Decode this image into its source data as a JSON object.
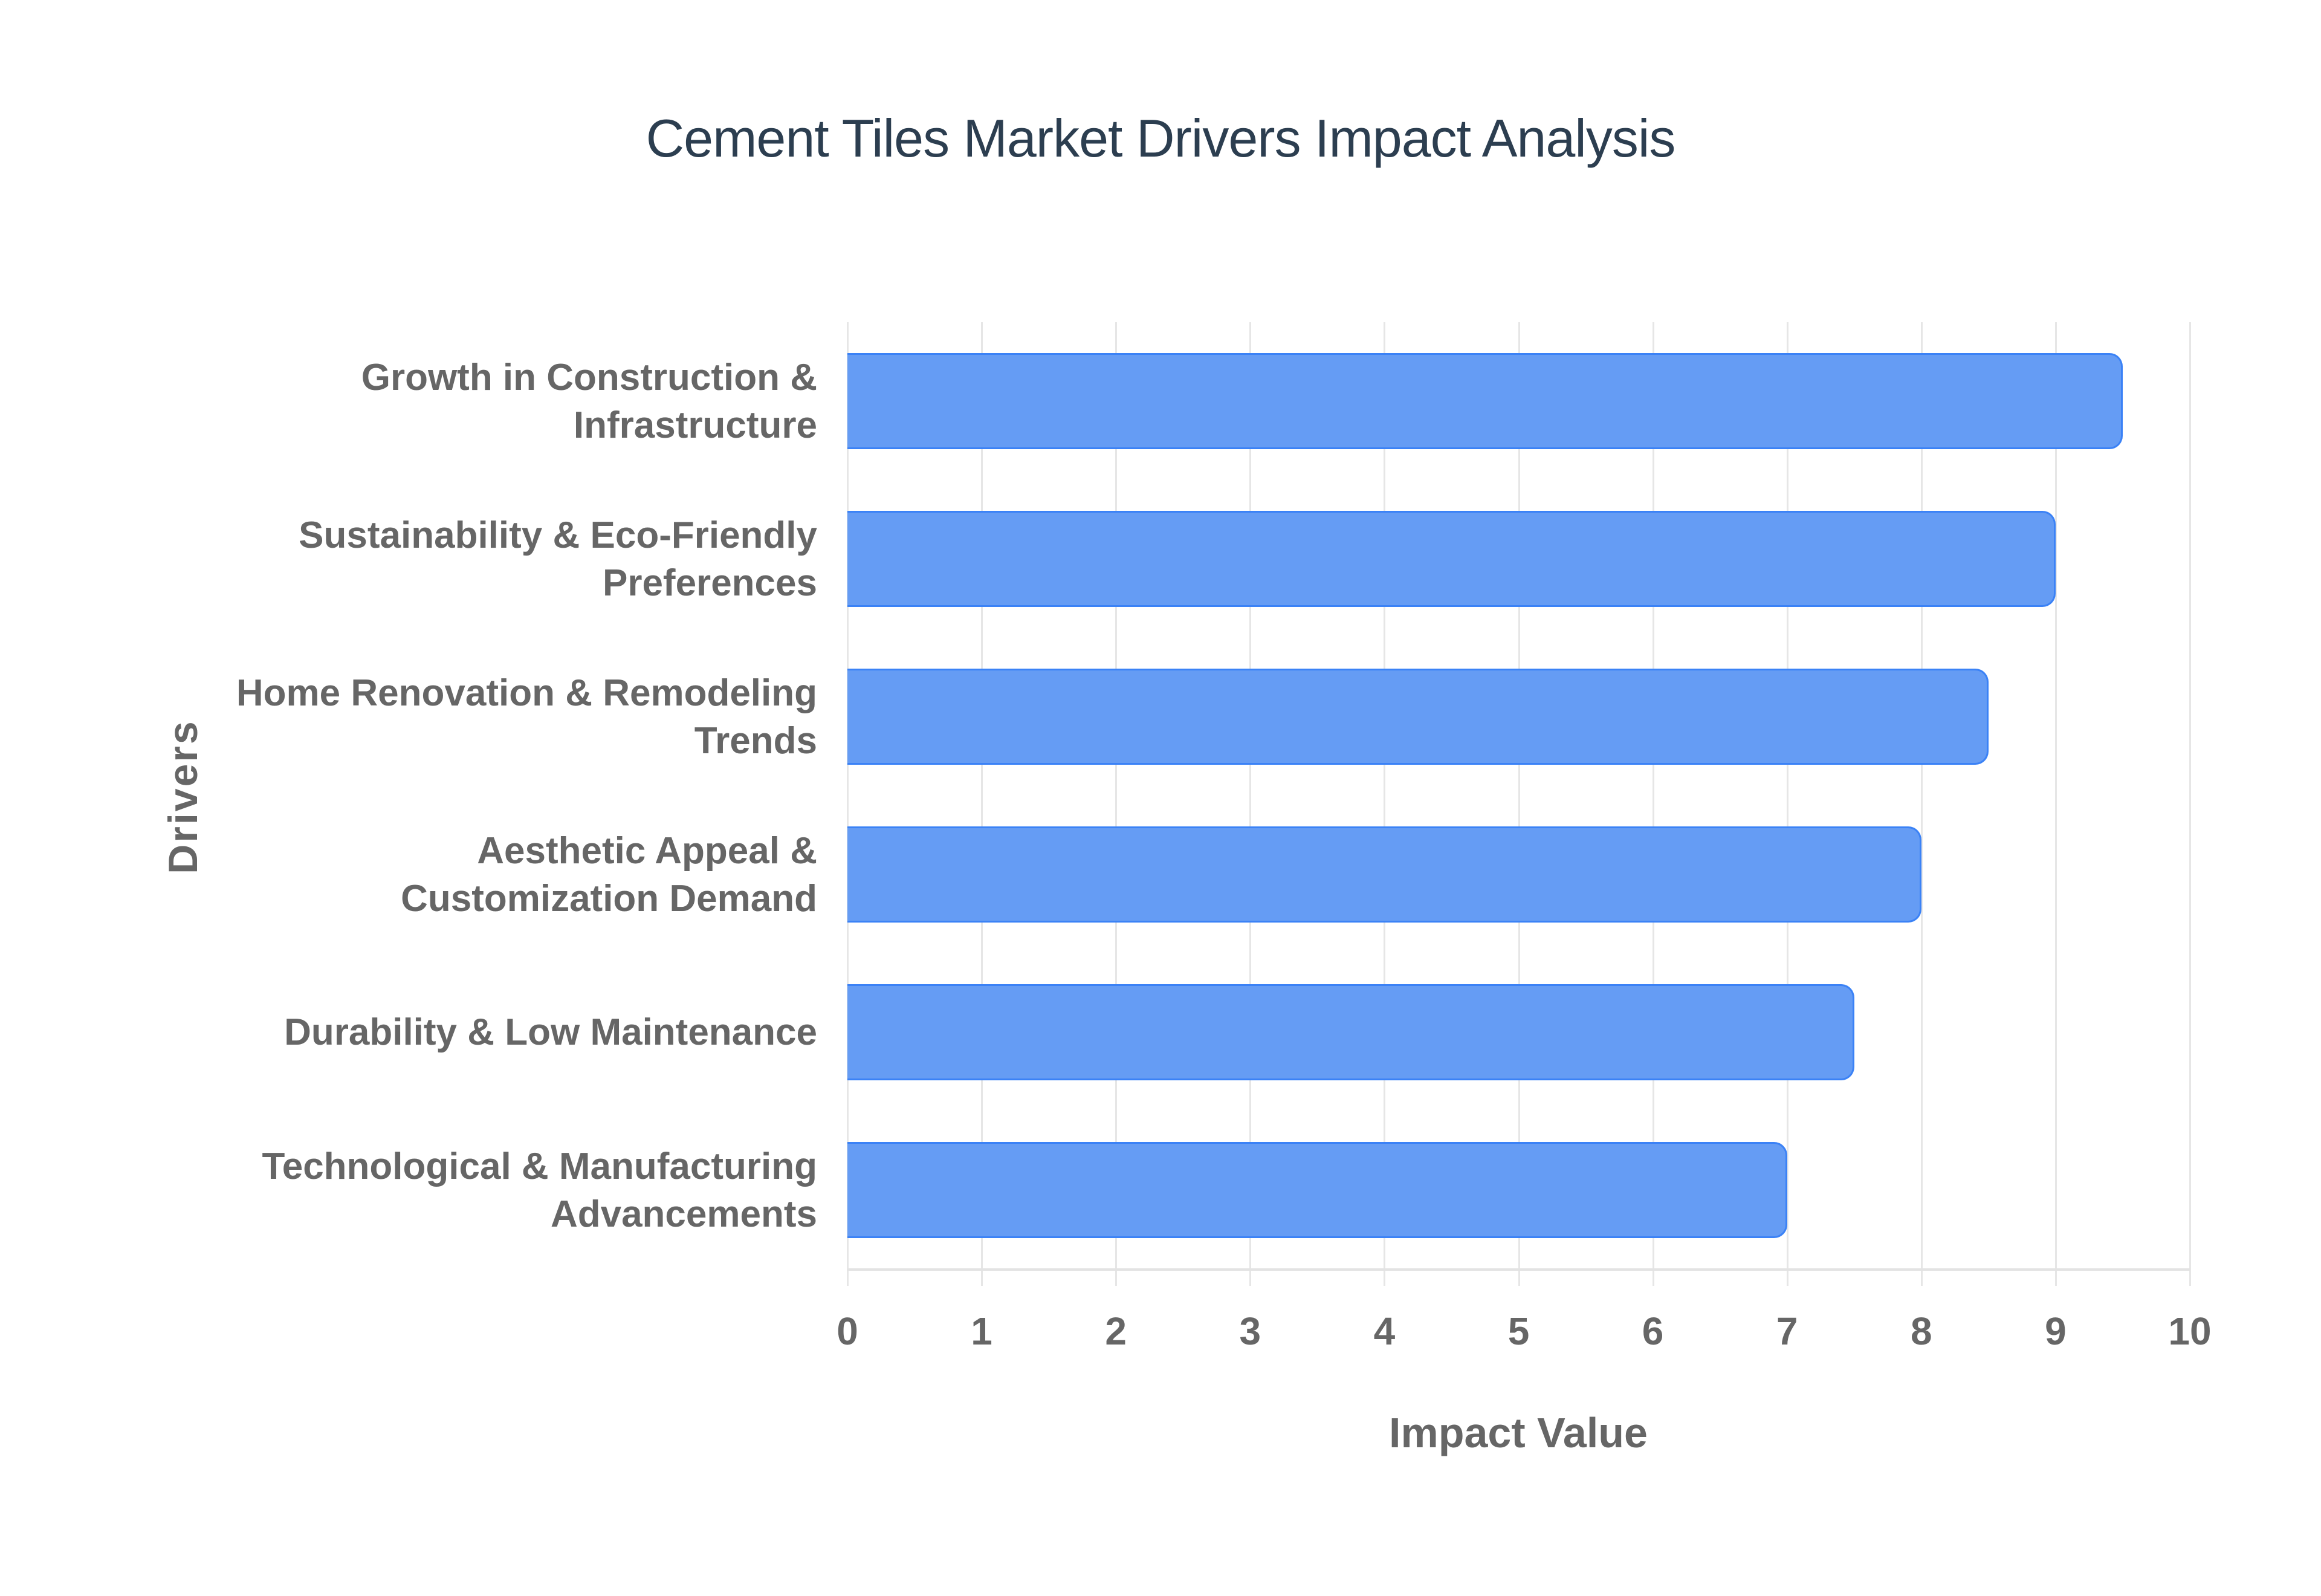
{
  "chart": {
    "title": "Cement Tiles Market Drivers Impact Analysis",
    "x_axis_title": "Impact Value",
    "y_axis_title": "Drivers",
    "x_ticks": [
      "0",
      "1",
      "2",
      "3",
      "4",
      "5",
      "6",
      "7",
      "8",
      "9",
      "10"
    ],
    "categories": [
      {
        "lines": [
          "Growth in Construction &",
          "Infrastructure"
        ],
        "value": 9.5
      },
      {
        "lines": [
          "Sustainability & Eco-Friendly",
          "Preferences"
        ],
        "value": 9.0
      },
      {
        "lines": [
          "Home Renovation & Remodeling",
          "Trends"
        ],
        "value": 8.5
      },
      {
        "lines": [
          "Aesthetic Appeal &",
          "Customization Demand"
        ],
        "value": 8.0
      },
      {
        "lines": [
          "Durability & Low Maintenance"
        ],
        "value": 7.5
      },
      {
        "lines": [
          "Technological & Manufacturing",
          "Advancements"
        ],
        "value": 7.0
      }
    ],
    "colors": {
      "bar_fill": "#6099f4",
      "bar_stroke": "#3b82f6",
      "title": "#2c3e50",
      "axis_text": "#666666",
      "grid": "#e6e6e6"
    }
  },
  "chart_data": {
    "type": "bar",
    "orientation": "horizontal",
    "title": "Cement Tiles Market Drivers Impact Analysis",
    "xlabel": "Impact Value",
    "ylabel": "Drivers",
    "categories": [
      "Growth in Construction & Infrastructure",
      "Sustainability & Eco-Friendly Preferences",
      "Home Renovation & Remodeling Trends",
      "Aesthetic Appeal & Customization Demand",
      "Durability & Low Maintenance",
      "Technological & Manufacturing Advancements"
    ],
    "values": [
      9.5,
      9.0,
      8.5,
      8.0,
      7.5,
      7.0
    ],
    "xlim": [
      0,
      10
    ],
    "x_ticks": [
      0,
      1,
      2,
      3,
      4,
      5,
      6,
      7,
      8,
      9,
      10
    ],
    "grid": true,
    "legend": null,
    "bar_color": "#6099f4"
  }
}
